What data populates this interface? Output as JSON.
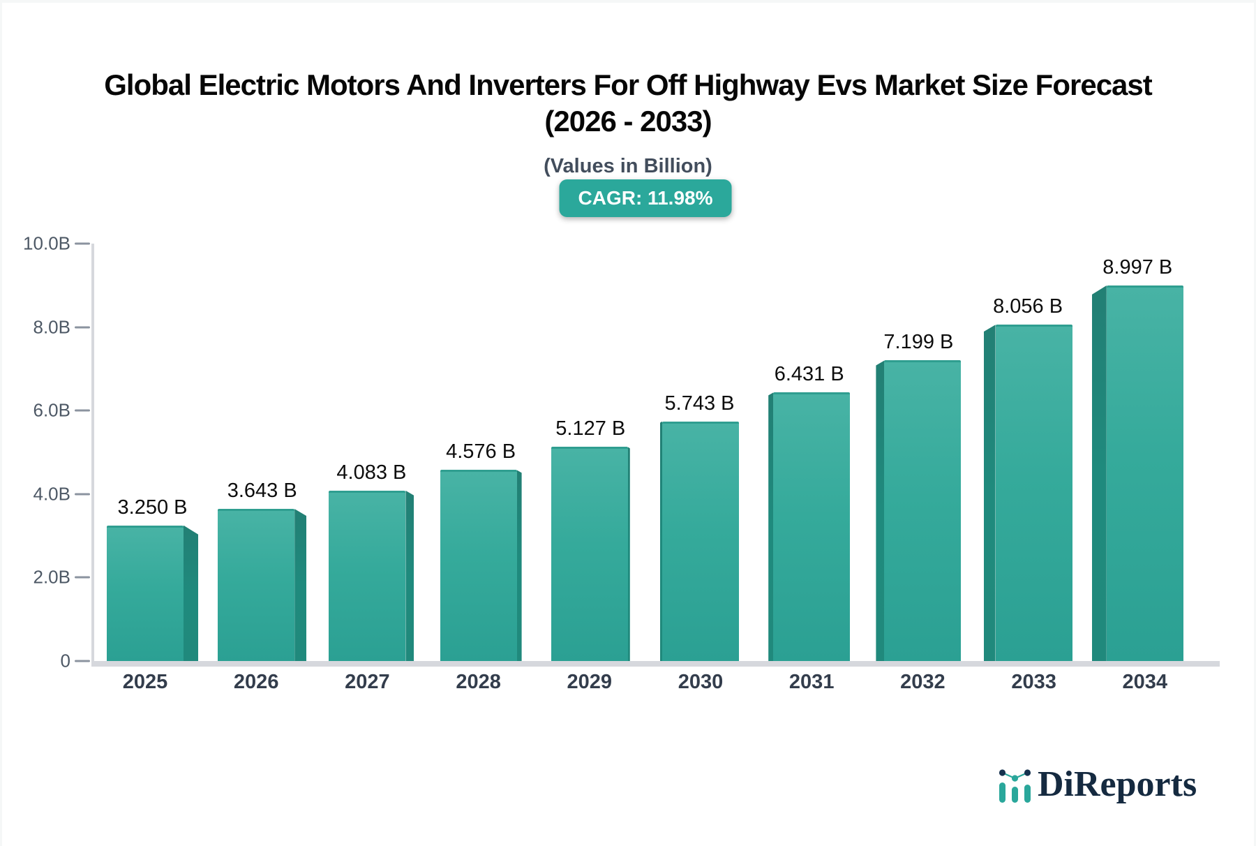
{
  "title": {
    "line1": "Global Electric Motors And Inverters For Off Highway Evs Market Size Forecast",
    "line2": "(2026 - 2033)"
  },
  "subtitle": "(Values in Billion)",
  "cagr_badge": "CAGR: 11.98%",
  "brand": {
    "name": "DiReports"
  },
  "colors": {
    "accent_teal": "#2ba89b",
    "bar_face_top": "#48b3a5",
    "bar_face_bottom": "#2ba093",
    "bar_side": "#1f8a7d",
    "axis_gray": "#d6d8dd",
    "brand_navy": "#152a40"
  },
  "chart_data": {
    "type": "bar",
    "title": "Global Electric Motors And Inverters For Off Highway Evs Market Size Forecast (2026 - 2033)",
    "subtitle": "(Values in Billion)",
    "cagr": "11.98%",
    "categories": [
      "2025",
      "2026",
      "2027",
      "2028",
      "2029",
      "2030",
      "2031",
      "2032",
      "2033",
      "2034"
    ],
    "values": [
      3.25,
      3.643,
      4.083,
      4.576,
      5.127,
      5.743,
      6.431,
      7.199,
      8.056,
      8.997
    ],
    "value_labels": [
      "3.250 B",
      "3.643 B",
      "4.083 B",
      "4.576 B",
      "5.127 B",
      "5.743 B",
      "6.431 B",
      "7.199 B",
      "8.056 B",
      "8.997 B"
    ],
    "xlabel": "",
    "ylabel": "",
    "ylim": [
      0,
      10
    ],
    "yticks": [
      {
        "label": "0",
        "value": 0
      },
      {
        "label": "2.0B",
        "value": 2
      },
      {
        "label": "4.0B",
        "value": 4
      },
      {
        "label": "6.0B",
        "value": 6
      },
      {
        "label": "8.0B",
        "value": 8
      },
      {
        "label": "10.0B",
        "value": 10
      }
    ],
    "grid": false,
    "legend": false
  }
}
